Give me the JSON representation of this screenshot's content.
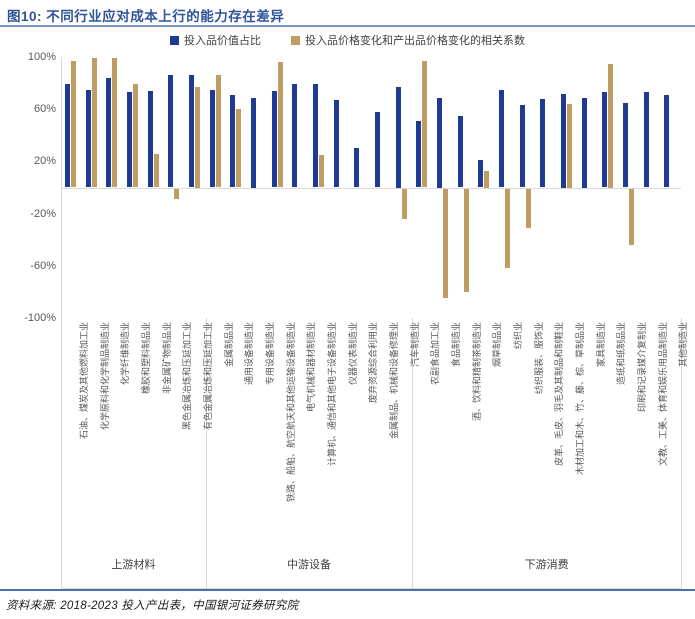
{
  "title": "图10:  不同行业应对成本上行的能力存在差异",
  "footer": "资料来源:  2018-2023 投入产出表，中国银河证券研究院",
  "colors": {
    "title_blue": "#2F5597",
    "top_rule": "#8095C0",
    "bottom_rule": "#4C6FA8",
    "bar_blue": "#1F3A93",
    "bar_gold": "#C09E63",
    "axis_gray": "#D9D9D9",
    "tick_text": "#595959"
  },
  "chart_data": {
    "type": "bar",
    "title": "图10:  不同行业应对成本上行的能力存在差异",
    "ylim": [
      -100,
      100
    ],
    "y_ticks": [
      "100%",
      "60%",
      "20%",
      "-20%",
      "-60%",
      "-100%"
    ],
    "grid": false,
    "legend_position": "top",
    "unit": "%",
    "categories": [
      "石油、煤炭及其他燃料加工业",
      "化学原料和化学制品制造业",
      "化学纤维制造业",
      "橡胶和塑料制品业",
      "非金属矿物制品业",
      "黑色金属冶炼和压延加工业",
      "有色金属冶炼和压延加工业",
      "金属制品业",
      "通用设备制造业",
      "专用设备制造业",
      "铁路、船舶、航空航天和其他运输设备制造业",
      "电气机械和器材制造业",
      "计算机、通信和其他电子设备制造业",
      "仪器仪表制造业",
      "废弃资源综合利用业",
      "金属制品、机械和设备修理业",
      "汽车制造业",
      "农副食品加工业",
      "食品制造业",
      "酒、饮料和精制茶制造业",
      "烟草制品业",
      "纺织业",
      "纺织服装、服饰业",
      "皮革、毛皮、羽毛及其制品和制鞋业",
      "木材加工和木、竹、藤、棕、草制品业",
      "家具制造业",
      "造纸和纸制品业",
      "印刷和记录媒介复制业",
      "文教、工美、体育和娱乐用品制造业",
      "其他制造业"
    ],
    "groups": [
      {
        "label": "上游材料",
        "count": 7
      },
      {
        "label": "中游设备",
        "count": 10
      },
      {
        "label": "下游消费",
        "count": 13
      }
    ],
    "series": [
      {
        "name": "投入品价值占比",
        "color": "#1F3A93",
        "values": [
          79,
          75,
          84,
          73,
          74,
          86,
          86,
          75,
          71,
          69,
          74,
          79,
          79,
          67,
          30,
          58,
          77,
          51,
          69,
          55,
          21,
          75,
          63,
          68,
          72,
          69,
          73,
          65,
          73,
          71
        ]
      },
      {
        "name": "投入品价格变化和产出品价格变化的相关系数",
        "color": "#C09E63",
        "values": [
          97,
          99,
          99,
          79,
          26,
          -8,
          77,
          86,
          60,
          0,
          96,
          0,
          25,
          0,
          0,
          0,
          -23,
          97,
          -84,
          -79,
          13,
          -61,
          -30,
          0,
          64,
          0,
          95,
          -43,
          0,
          0
        ]
      }
    ]
  }
}
